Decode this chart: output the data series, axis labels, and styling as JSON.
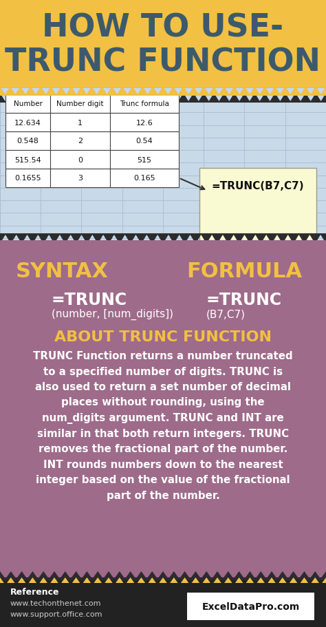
{
  "title_line1": "HOW TO USE-",
  "title_line2": "TRUNC FUNCTION",
  "title_bg": "#F2C043",
  "title_color": "#3D5A6C",
  "table_bg": "#8BAEC8",
  "table_header": [
    "Number",
    "Number digit",
    "Trunc formula"
  ],
  "table_rows": [
    [
      "12.634",
      "1",
      "12.6"
    ],
    [
      "0.548",
      "2",
      "0.54"
    ],
    [
      "515.54",
      "0",
      "515"
    ],
    [
      "0.1655",
      "3",
      "0.165"
    ]
  ],
  "formula_box_text": "=TRUNC(B7,C7)",
  "formula_box_bg": "#FAFAD2",
  "syntax_bg": "#9E6B8A",
  "syntax_label": "SYNTAX",
  "formula_label": "FORMULA",
  "syntax_color": "#F2C043",
  "syntax_text1": "=TRUNC",
  "syntax_text2": "(number, [num_digits])",
  "formula_text1": "=TRUNC",
  "formula_text2": "(B7,C7)",
  "about_title": "ABOUT TRUNC FUNCTION",
  "about_color": "#F2C043",
  "about_lines": [
    "TRUNC Function returns a number truncated",
    "to a specified number of digits. TRUNC is",
    "also used to return a set number of decimal",
    "places without rounding, using the",
    "num_digits argument. TRUNC and INT are",
    "similar in that both return integers. TRUNC",
    "removes the fractional part of the number.",
    "INT rounds numbers down to the nearest",
    "integer based on the value of the fractional",
    "part of the number."
  ],
  "footer_bg": "#222222",
  "footer_ref_label": "Reference",
  "footer_ref1": "www.techonthenet.com",
  "footer_ref2": "www.support.office.com",
  "footer_brand": "ExcelDataPro.com",
  "white": "#FFFFFF",
  "zig_dark": "#2C2C2C",
  "zig_yellow": "#F2C043",
  "cell_bg": "#C8D9E8",
  "cell_line": "#A8BDD0",
  "spreadsheet_col_count": 8,
  "spreadsheet_row_count": 13
}
